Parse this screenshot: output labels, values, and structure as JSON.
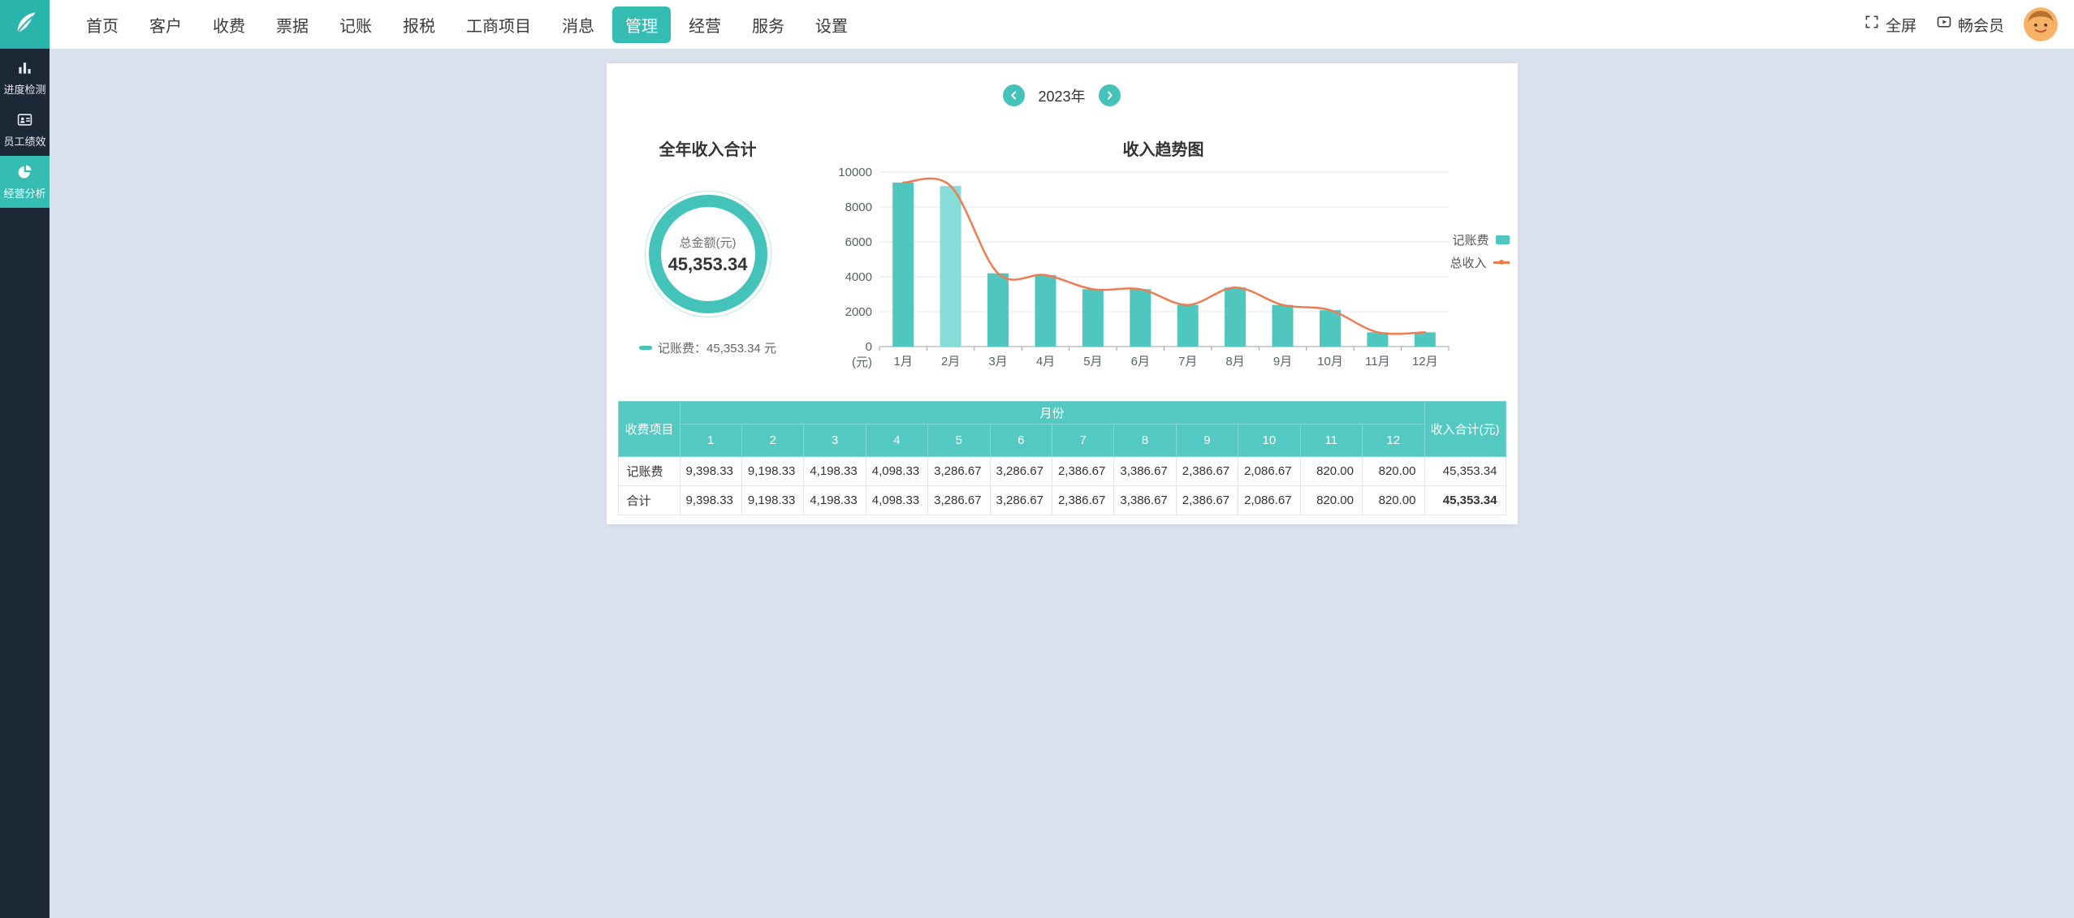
{
  "navbar": {
    "menu": [
      {
        "label": "首页",
        "active": false
      },
      {
        "label": "客户",
        "active": false
      },
      {
        "label": "收费",
        "active": false
      },
      {
        "label": "票据",
        "active": false
      },
      {
        "label": "记账",
        "active": false
      },
      {
        "label": "报税",
        "active": false
      },
      {
        "label": "工商项目",
        "active": false
      },
      {
        "label": "消息",
        "active": false
      },
      {
        "label": "管理",
        "active": true
      },
      {
        "label": "经营",
        "active": false
      },
      {
        "label": "服务",
        "active": false
      },
      {
        "label": "设置",
        "active": false
      }
    ],
    "right": {
      "fullscreen_label": "全屏",
      "member_label": "畅会员"
    }
  },
  "sidebar": {
    "items": [
      {
        "label": "进度检测",
        "icon": "bar-chart-icon",
        "active": false
      },
      {
        "label": "员工绩效",
        "icon": "id-card-icon",
        "active": false
      },
      {
        "label": "经营分析",
        "icon": "pie-chart-icon",
        "active": true
      }
    ]
  },
  "main": {
    "year_nav": {
      "year": "2023年"
    },
    "summary": {
      "title": "全年收入合计",
      "donut_label": "总金额(元)",
      "donut_value": "45,353.34",
      "legend_text": "记账费：45,353.34 元"
    },
    "trend": {
      "title": "收入趋势图"
    },
    "table": {
      "col1_header": "收费项目",
      "month_header": "月份",
      "month_cols": [
        "1",
        "2",
        "3",
        "4",
        "5",
        "6",
        "7",
        "8",
        "9",
        "10",
        "11",
        "12"
      ],
      "total_header": "收入合计(元)",
      "rows": [
        {
          "name": "记账费",
          "values": [
            "9,398.33",
            "9,198.33",
            "4,198.33",
            "4,098.33",
            "3,286.67",
            "3,286.67",
            "2,386.67",
            "3,386.67",
            "2,386.67",
            "2,086.67",
            "820.00",
            "820.00"
          ],
          "total": "45,353.34",
          "bold_total": false
        },
        {
          "name": "合计",
          "values": [
            "9,398.33",
            "9,198.33",
            "4,198.33",
            "4,098.33",
            "3,286.67",
            "3,286.67",
            "2,386.67",
            "3,386.67",
            "2,386.67",
            "2,086.67",
            "820.00",
            "820.00"
          ],
          "total": "45,353.34",
          "bold_total": true
        }
      ]
    }
  },
  "chart_data": {
    "type": "bar",
    "title": "收入趋势图",
    "categories": [
      "1月",
      "2月",
      "3月",
      "4月",
      "5月",
      "6月",
      "7月",
      "8月",
      "9月",
      "10月",
      "11月",
      "12月"
    ],
    "series": [
      {
        "name": "记账费",
        "type": "bar",
        "color": "#4fc7bf",
        "values": [
          9398.33,
          9198.33,
          4198.33,
          4098.33,
          3286.67,
          3286.67,
          2386.67,
          3386.67,
          2386.67,
          2086.67,
          820,
          820
        ]
      },
      {
        "name": "总收入",
        "type": "line",
        "color": "#ee7c52",
        "values": [
          9398.33,
          9198.33,
          4198.33,
          4098.33,
          3286.67,
          3286.67,
          2386.67,
          3386.67,
          2386.67,
          2086.67,
          820,
          820
        ]
      }
    ],
    "ylim": [
      0,
      10000
    ],
    "yticks": [
      0,
      2000,
      4000,
      6000,
      8000,
      10000
    ],
    "y_unit": "(元)",
    "grid": true,
    "legend_position": "right",
    "highlight_bar_index": 1,
    "bar_highlight_color": "#86dcd6"
  },
  "colors": {
    "accent_teal": "#35bdb4",
    "bar_teal": "#4fc7bf",
    "line_orange": "#ee7c52",
    "sidebar_dark": "#1d2837",
    "page_bg": "#dbe2ee",
    "table_header": "#54c9c2"
  }
}
